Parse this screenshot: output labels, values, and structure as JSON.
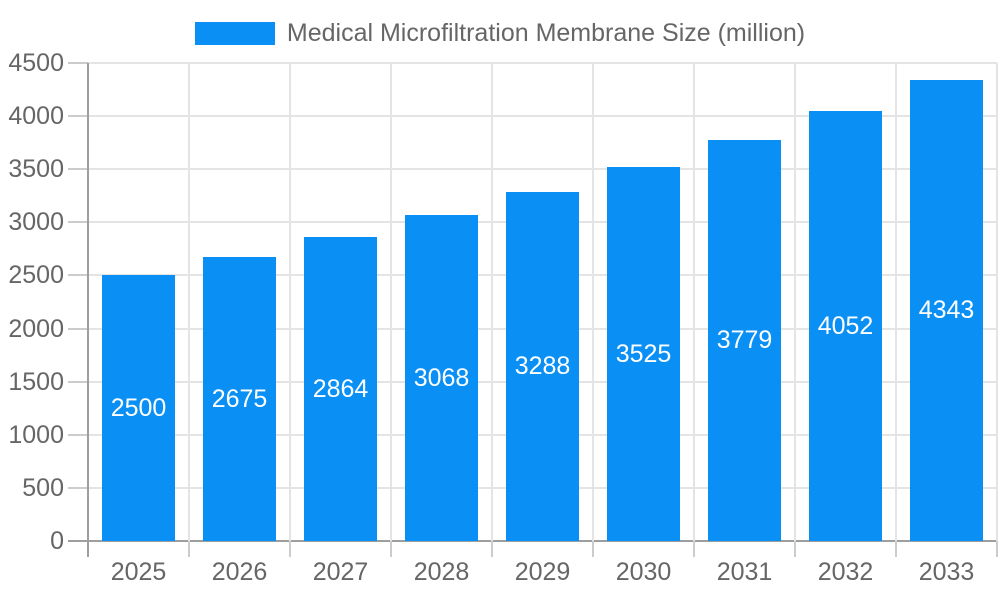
{
  "legend": {
    "label": "Medical Microfiltration Membrane Size (million)"
  },
  "chart_data": {
    "type": "bar",
    "title": "Medical Microfiltration Membrane Size (million)",
    "categories": [
      "2025",
      "2026",
      "2027",
      "2028",
      "2029",
      "2030",
      "2031",
      "2032",
      "2033"
    ],
    "values": [
      2500,
      2675,
      2864,
      3068,
      3288,
      3525,
      3779,
      4052,
      4343
    ],
    "series": [
      {
        "name": "Medical Microfiltration Membrane Size (million)",
        "values": [
          2500,
          2675,
          2864,
          3068,
          3288,
          3525,
          3779,
          4052,
          4343
        ]
      }
    ],
    "xlabel": "",
    "ylabel": "",
    "ylim": [
      0,
      4500
    ],
    "yticks": [
      0,
      500,
      1000,
      1500,
      2000,
      2500,
      3000,
      3500,
      4000,
      4500
    ],
    "grid": true,
    "legend_position": "top",
    "bar_value_labels": "inside-center",
    "colors": {
      "bar": "#0a90f5",
      "grid_line": "#e4e4e4",
      "tick_mark": "#cccccc",
      "axis_line": "#9e9e9e",
      "tick_text": "#666666",
      "bar_label_text": "#ffffff",
      "background": "#ffffff"
    }
  }
}
